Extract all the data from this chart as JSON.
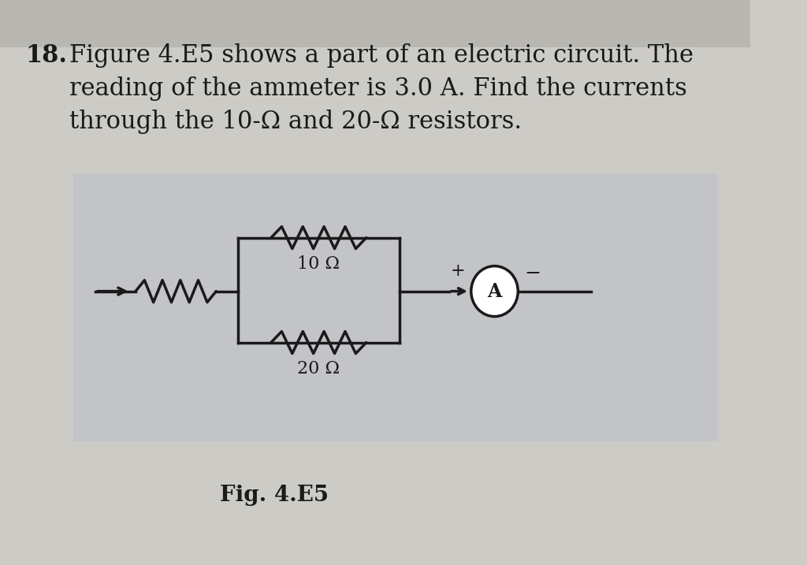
{
  "title_number": "18.",
  "title_line1": "Figure 4.E5 shows a part of an electric circuit. The",
  "title_line2": "reading of the ammeter is 3.0 A. Find the currents",
  "title_line3": "through the 10-Ω and 20-Ω resistors.",
  "fig_label": "Fig. 4.E5",
  "resistor1_label": "10 Ω",
  "resistor2_label": "20 Ω",
  "ammeter_label": "A",
  "plus_label": "+",
  "minus_label": "−",
  "page_bg": "#cccbc6",
  "page_top_bg": "#b8b7b2",
  "circuit_bg": "#c2c4c8",
  "text_color": "#1a1a1a",
  "line_color": "#1a1a1a",
  "ammeter_fill": "#c2c4c8",
  "font_size_title": 22,
  "font_size_label": 16,
  "font_size_fig": 20
}
